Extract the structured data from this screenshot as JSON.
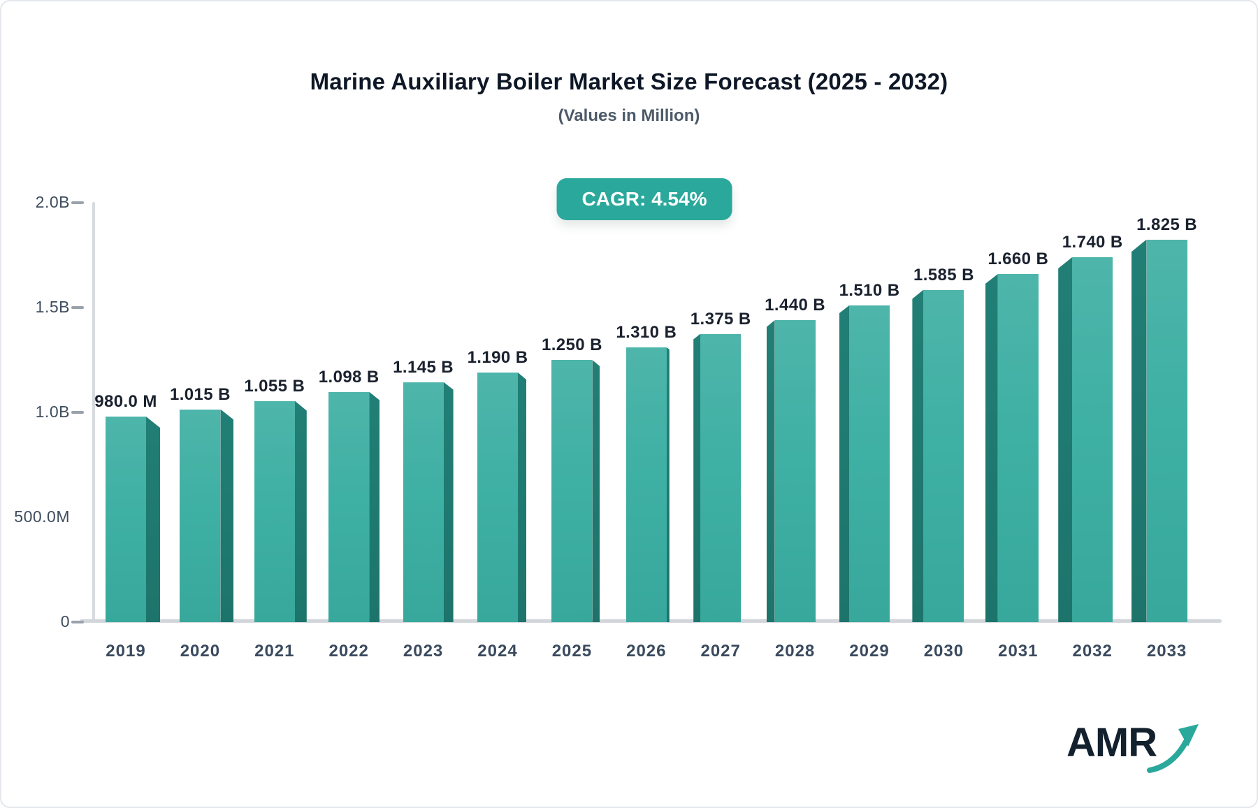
{
  "title": "Marine Auxiliary Boiler Market Size Forecast (2025 - 2032)",
  "subtitle": "(Values in Million)",
  "badge": {
    "label": "CAGR: 4.54%"
  },
  "logo": {
    "text": "AMR",
    "arrow_icon": "trend-up-arrow"
  },
  "colors": {
    "bar_face": "#3fb0a4",
    "bar_face_light": "#4eb5aa",
    "bar_face_dark": "#37a89b",
    "bar_side": "#1f7b72",
    "badge_bg": "#2aa89b",
    "axis_line": "#d4d8dc",
    "tick_dash": "#9aa2ab",
    "title_text": "#0e1726",
    "subtitle_text": "#4d5a69",
    "value_label_text": "#1a212e",
    "year_label_text": "#3a4a5e",
    "logo_text": "#13202d",
    "logo_arrow": "#2aa89b"
  },
  "chart_data": {
    "type": "bar",
    "title": "Marine Auxiliary Boiler Market Size Forecast (2025 - 2032)",
    "subtitle": "(Values in Million)",
    "annotation": "CAGR: 4.54%",
    "bar_style": "3d-perspective",
    "grid": false,
    "legend": false,
    "categories": [
      "2019",
      "2020",
      "2021",
      "2022",
      "2023",
      "2024",
      "2025",
      "2026",
      "2027",
      "2028",
      "2029",
      "2030",
      "2031",
      "2032",
      "2033"
    ],
    "values_millions": [
      980,
      1015,
      1055,
      1098,
      1145,
      1190,
      1250,
      1310,
      1375,
      1440,
      1510,
      1585,
      1660,
      1740,
      1825
    ],
    "value_labels": [
      "980.0 M",
      "1.015 B",
      "1.055 B",
      "1.098 B",
      "1.145 B",
      "1.190 B",
      "1.250 B",
      "1.310 B",
      "1.375 B",
      "1.440 B",
      "1.510 B",
      "1.585 B",
      "1.660 B",
      "1.740 B",
      "1.825 B"
    ],
    "ylim": [
      0,
      2000
    ],
    "y_ticks": [
      {
        "label": "2.0B",
        "value": 2000,
        "dash": true
      },
      {
        "label": "1.5B",
        "value": 1500,
        "dash": true
      },
      {
        "label": "1.0B",
        "value": 1000,
        "dash": true
      },
      {
        "label": "500.0M",
        "value": 500,
        "dash": false
      },
      {
        "label": "0",
        "value": 0,
        "dash": true
      }
    ]
  }
}
